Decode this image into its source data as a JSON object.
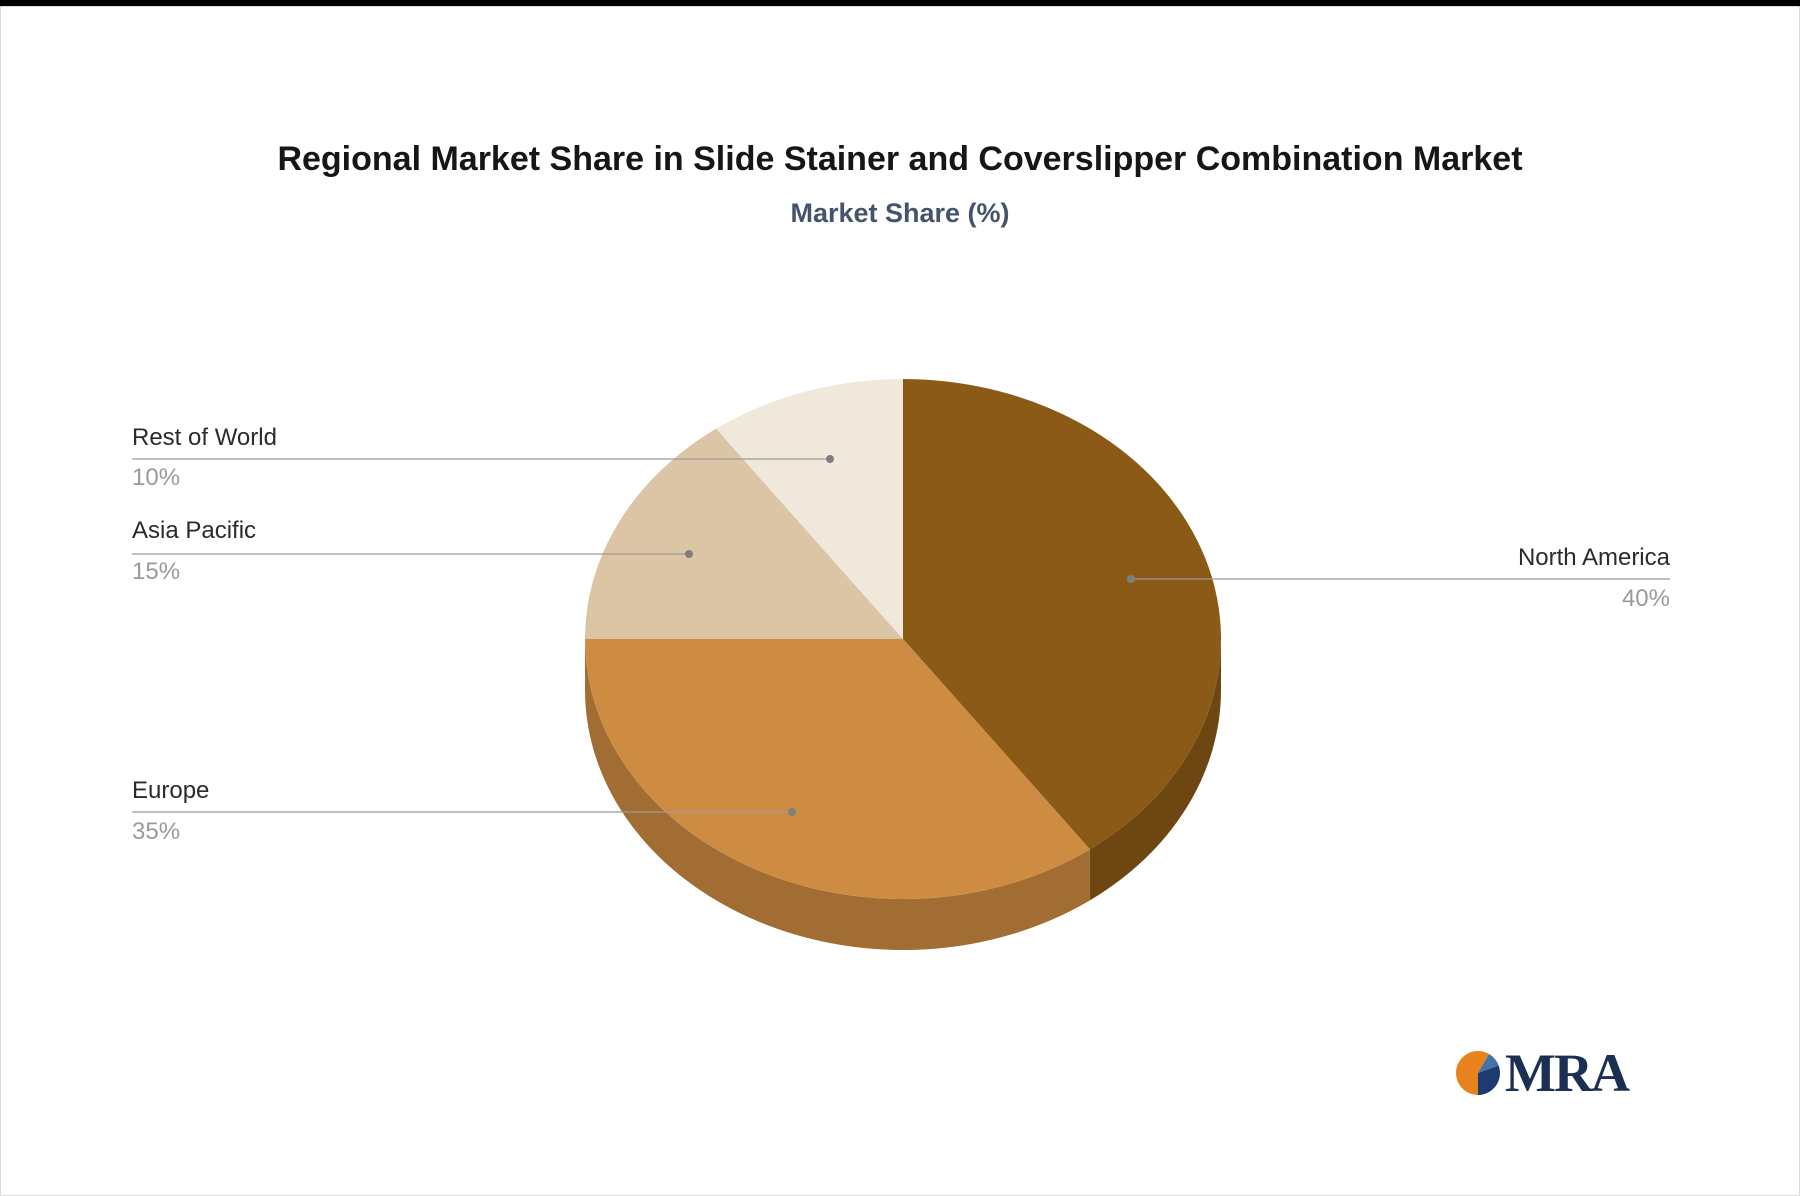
{
  "title": "Regional Market Share in Slide Stainer and Coverslipper Combination Market",
  "subtitle": "Market Share (%)",
  "chart_data": {
    "type": "pie",
    "labels": [
      "North America",
      "Europe",
      "Asia Pacific",
      "Rest of World"
    ],
    "values": [
      40,
      35,
      15,
      10
    ],
    "pct_labels": [
      "40%",
      "35%",
      "15%",
      "10%"
    ],
    "colors": [
      "#8c5a17",
      "#ce8c42",
      "#dcc5a5",
      "#f1e8dc"
    ],
    "effect": "3d",
    "start_angle_deg": -90,
    "direction": "clockwise",
    "legend_position": "none",
    "label_style": "callout-lines",
    "line_color": "#9b9b9b",
    "dot_color": "#7f7f7f"
  },
  "logo": {
    "text": "MRA",
    "colors": {
      "orange": "#E8821D",
      "navy": "#1E3A6E",
      "blue": "#4472A8",
      "text": "#1B2F52"
    }
  }
}
